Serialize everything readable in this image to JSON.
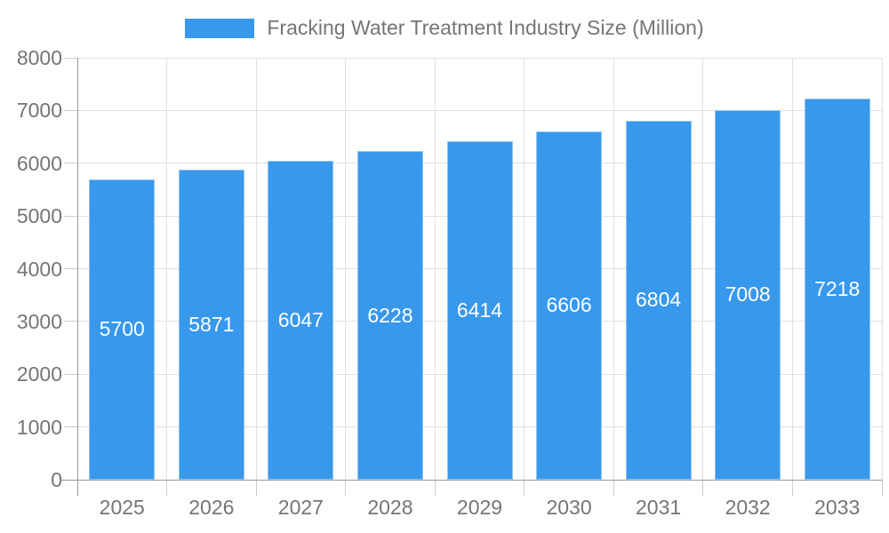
{
  "chart_data": {
    "type": "bar",
    "title": "Fracking Water Treatment Industry Size (Million)",
    "legend": {
      "label": "Fracking Water Treatment Industry Size (Million)",
      "position": "top-center"
    },
    "categories": [
      "2025",
      "2026",
      "2027",
      "2028",
      "2029",
      "2030",
      "2031",
      "2032",
      "2033"
    ],
    "series": [
      {
        "name": "Fracking Water Treatment Industry Size (Million)",
        "values": [
          5700,
          5871,
          6047,
          6228,
          6414,
          6606,
          6804,
          7008,
          7218
        ]
      }
    ],
    "value_labels_shown": true,
    "xlabel": "",
    "ylabel": "",
    "ylim": [
      0,
      8000
    ],
    "y_ticks": [
      0,
      1000,
      2000,
      3000,
      4000,
      5000,
      6000,
      7000,
      8000
    ],
    "grid": true,
    "colors": {
      "bar": "#3898ec",
      "axis_text": "#757575",
      "value_text": "#ffffff",
      "gridline": "#e0e0e0",
      "axis_line": "#999999",
      "tick": "#cccccc"
    }
  }
}
